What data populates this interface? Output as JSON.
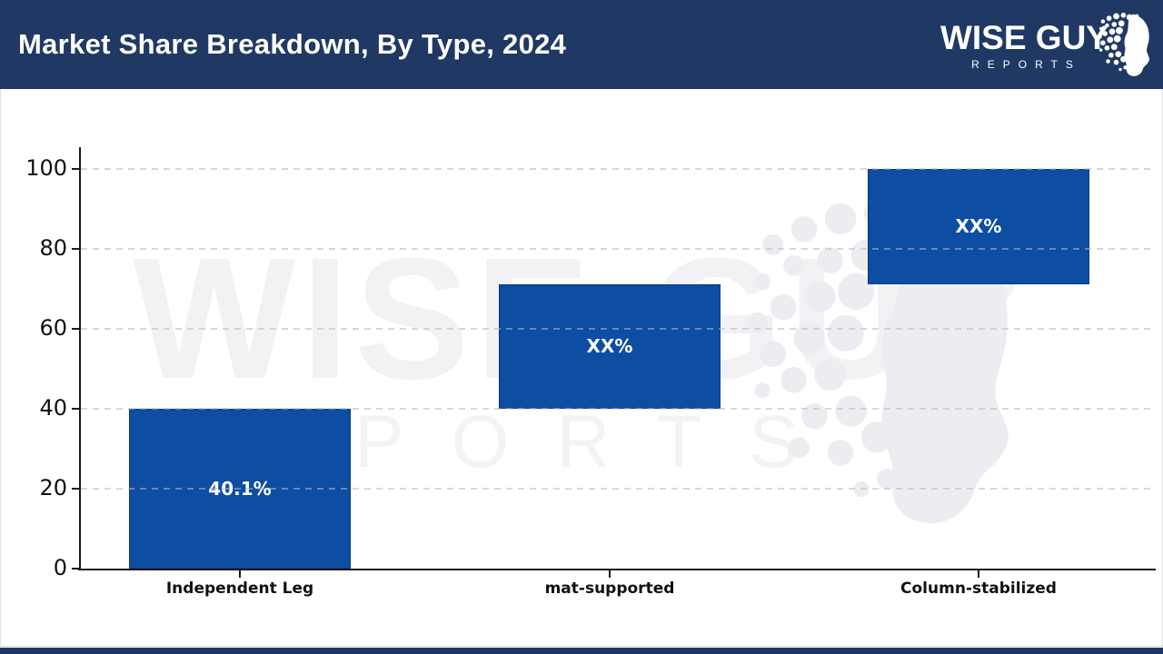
{
  "header": {
    "title": "Market Share Breakdown, By Type, 2024",
    "logo": {
      "line1": "WISE GUY",
      "line2": "REPORTS"
    }
  },
  "watermark": {
    "line1": "WISE GUY",
    "line2": "REPORTS"
  },
  "chart_data": {
    "type": "bar",
    "subtype": "waterfall",
    "title": "Market Share Breakdown, By Type, 2024",
    "categories": [
      "Independent Leg",
      "mat-supported",
      "Column-stabilized"
    ],
    "segments": [
      {
        "category": "Independent Leg",
        "start": 0,
        "end": 40.1,
        "label": "40.1%"
      },
      {
        "category": "mat-supported",
        "start": 40.1,
        "end": 71.2,
        "label": "XX%"
      },
      {
        "category": "Column-stabilized",
        "start": 71.2,
        "end": 100,
        "label": "XX%"
      }
    ],
    "values_displayed": [
      "40.1%",
      "XX%",
      "XX%"
    ],
    "xlabel": "",
    "ylabel": "",
    "yticks": [
      0,
      20,
      40,
      60,
      80,
      100
    ],
    "ylim": [
      0,
      105
    ],
    "grid": "horizontal-dashed",
    "legend": "none",
    "bar_color": "#0d4da2",
    "bar_label_color": "#ffffff"
  },
  "colors": {
    "header_navy": "#203864",
    "footer_navy": "#203864",
    "bar_blue": "#0d4da2",
    "gridline_gray": "#d4d4d8",
    "axis_black": "#1a1a1a",
    "watermark_gray": "#f2f2f5",
    "border_gray": "#d9d9d9"
  }
}
